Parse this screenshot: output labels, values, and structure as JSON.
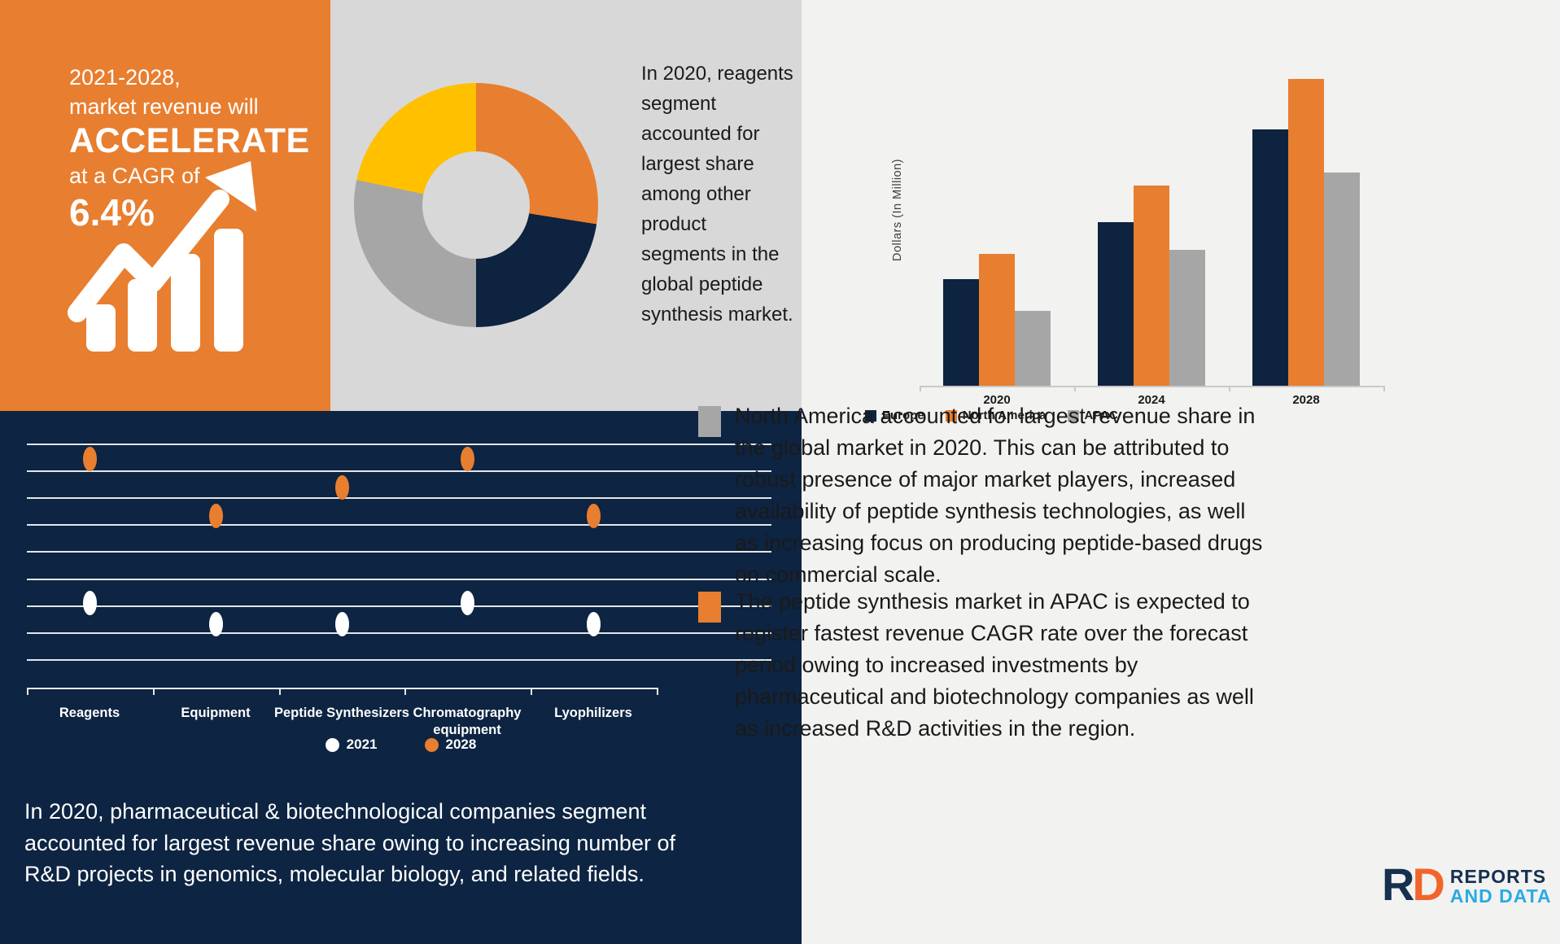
{
  "colors": {
    "orange": "#E87E2F",
    "navy_panel": "#0D2442",
    "bar_navy": "#0D2340",
    "gray": "#A6A6A6",
    "panel_gray": "#D8D8D8",
    "right_bg": "#F2F2F1",
    "yellow": "#FFC000",
    "white": "#FFFFFF",
    "text_dark": "#1A1A1A",
    "logo_navy": "#16304F",
    "logo_orange": "#F2652A",
    "logo_blue": "#29ABE2"
  },
  "cagr_panel": {
    "intro_line1": "2021-2028,",
    "intro_line2": "market revenue will",
    "headline": "ACCELERATE",
    "sub_line": "at a CAGR of",
    "cagr_value": "6.4%"
  },
  "donut_panel": {
    "caption_lines": [
      "In 2020, reagents",
      "segment",
      "accounted for",
      "largest share",
      "among other",
      "product",
      "segments in the",
      "global peptide",
      "synthesis market."
    ]
  },
  "dot_panel": {
    "legend": [
      {
        "label": "2021",
        "color": "#FFFFFF"
      },
      {
        "label": "2028",
        "color": "#E87E2F"
      }
    ],
    "paragraph": "In 2020, pharmaceutical & biotechnological companies segment accounted for largest revenue share owing to increasing number of R&D projects in genomics, molecular biology, and related fields."
  },
  "bar_panel": {
    "ylabel": "Dollars (In Million)"
  },
  "bullets": [
    {
      "color": "#A6A6A6",
      "text": "North America accounted for largest revenue share in the global market in 2020. This can be attributed to robust presence of major market players, increased availability of peptide synthesis technologies, as well as increasing focus on producing peptide-based drugs on commercial scale."
    },
    {
      "color": "#E87E2F",
      "text": "The peptide synthesis market in APAC is expected to register fastest revenue CAGR rate over the forecast period owing to increased investments by pharmaceutical and biotechnology companies as well as increased R&D activities in the region."
    }
  ],
  "logo": {
    "letter_r": "R",
    "letter_d": "D",
    "word_top": "REPORTS",
    "word_bottom": "AND DATA"
  },
  "chart_data": [
    {
      "type": "pie",
      "donut": true,
      "title": "",
      "start_angle_deg": 0,
      "clockwise": true,
      "slices": [
        {
          "name": "slice-1",
          "pct": 27.5,
          "color": "#E87E2F"
        },
        {
          "name": "slice-2",
          "pct": 22.5,
          "color": "#0D2340"
        },
        {
          "name": "slice-3",
          "pct": 28.3,
          "color": "#A6A6A6"
        },
        {
          "name": "slice-4",
          "pct": 21.7,
          "color": "#FFC000"
        }
      ],
      "labels_shown": false
    },
    {
      "type": "bar",
      "categories": [
        "2020",
        "2024",
        "2028"
      ],
      "series": [
        {
          "name": "Europe",
          "color": "#0D2340",
          "values": [
            131,
            201,
            315
          ]
        },
        {
          "name": "North America",
          "color": "#E87E2F",
          "values": [
            162,
            246,
            377
          ]
        },
        {
          "name": "APAC",
          "color": "#A6A6A6",
          "values": [
            92,
            167,
            262
          ]
        }
      ],
      "ylabel": "Dollars (In Million)",
      "xlabel": "",
      "ylim": [
        0,
        415
      ],
      "units": "relative height (y-axis has no tick values)",
      "legend_position": "bottom",
      "grid": false
    },
    {
      "type": "scatter",
      "subtype": "dot-plot",
      "categories": [
        "Reagents",
        "Equipment",
        "Peptide Synthesizers",
        "Chromatography equipment",
        "Lyophilizers"
      ],
      "series": [
        {
          "name": "2021",
          "color": "#FFFFFF",
          "values_frac": [
            0.33,
            0.25,
            0.25,
            0.33,
            0.25
          ]
        },
        {
          "name": "2028",
          "color": "#E87E2F",
          "values_frac": [
            0.89,
            0.67,
            0.78,
            0.89,
            0.67
          ]
        }
      ],
      "units": "fraction of plot height (no y-axis values shown)",
      "grid": true,
      "legend_position": "bottom"
    }
  ]
}
